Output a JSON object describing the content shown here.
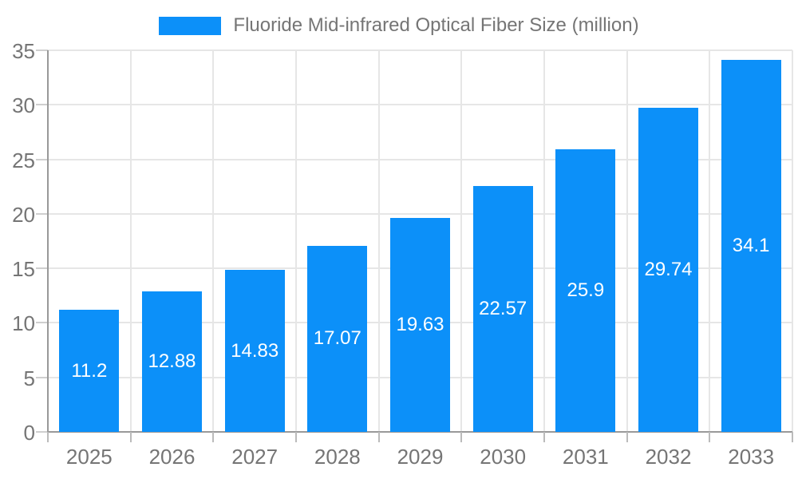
{
  "legend": {
    "label": "Fluoride Mid-infrared Optical Fiber Size (million)"
  },
  "chart_data": {
    "type": "bar",
    "title": "Fluoride Mid-infrared Optical Fiber Size (million)",
    "categories": [
      "2025",
      "2026",
      "2027",
      "2028",
      "2029",
      "2030",
      "2031",
      "2032",
      "2033"
    ],
    "values": [
      11.2,
      12.88,
      14.83,
      17.07,
      19.63,
      22.57,
      25.9,
      29.74,
      34.1
    ],
    "value_labels": [
      "11.2",
      "12.88",
      "14.83",
      "17.07",
      "19.63",
      "22.57",
      "25.9",
      "29.74",
      "34.1"
    ],
    "xlabel": "",
    "ylabel": "",
    "ylim": [
      0,
      35
    ],
    "yticks": [
      0,
      5,
      10,
      15,
      20,
      25,
      30,
      35
    ],
    "grid": true,
    "legend_position": "top",
    "value_label_position": "inside-center",
    "colors": {
      "bar": "#0c90f9",
      "bar_label": "#ffffff",
      "axis_text": "#757575",
      "legend_text": "#757575",
      "axis_line": "#999999",
      "gridline": "#e6e6e6",
      "background": "#ffffff"
    }
  }
}
